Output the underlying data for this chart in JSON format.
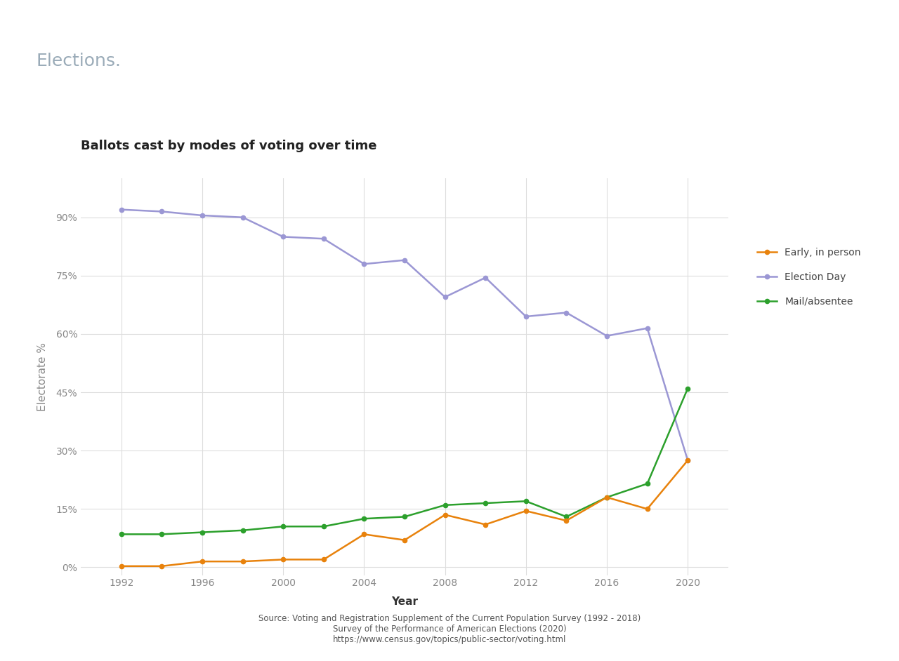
{
  "title": "Ballots cast by modes of voting over time",
  "header": "Elections.",
  "xlabel": "Year",
  "ylabel": "Electorate %",
  "source_text": "Source: Voting and Registration Supplement of the Current Population Survey (1992 - 2018)\nSurvey of the Performance of American Elections (2020)\nhttps://www.census.gov/topics/public-sector/voting.html",
  "years": [
    1992,
    1994,
    1996,
    1998,
    2000,
    2002,
    2004,
    2006,
    2008,
    2010,
    2012,
    2014,
    2016,
    2018,
    2020
  ],
  "early_in_person": [
    0.3,
    0.3,
    1.5,
    1.5,
    2.0,
    2.0,
    8.5,
    7.0,
    13.5,
    11.0,
    14.5,
    12.0,
    18.0,
    15.0,
    27.5
  ],
  "election_day": [
    92.0,
    91.5,
    90.5,
    90.0,
    85.0,
    84.5,
    78.0,
    79.0,
    69.5,
    74.5,
    64.5,
    65.5,
    59.5,
    61.5,
    27.5
  ],
  "mail_absentee": [
    8.5,
    8.5,
    9.0,
    9.5,
    10.5,
    10.5,
    12.5,
    13.0,
    16.0,
    16.5,
    17.0,
    13.0,
    18.0,
    21.5,
    46.0
  ],
  "early_color": "#E8820C",
  "election_color": "#9B97D4",
  "mail_color": "#2CA02C",
  "background_color": "#FFFFFF",
  "grid_color": "#DDDDDD",
  "ylim": [
    -2,
    100
  ],
  "yticks": [
    0,
    15,
    30,
    45,
    60,
    75,
    90
  ],
  "ytick_labels": [
    "0%",
    "15%",
    "30%",
    "45%",
    "60%",
    "75%",
    "90%"
  ],
  "xticks": [
    1992,
    1996,
    2000,
    2004,
    2008,
    2012,
    2016,
    2020
  ],
  "legend_labels": [
    "Early, in person",
    "Election Day",
    "Mail/absentee"
  ],
  "title_fontsize": 13,
  "header_fontsize": 18,
  "axis_label_fontsize": 11,
  "tick_fontsize": 10,
  "legend_fontsize": 10,
  "source_fontsize": 8.5
}
